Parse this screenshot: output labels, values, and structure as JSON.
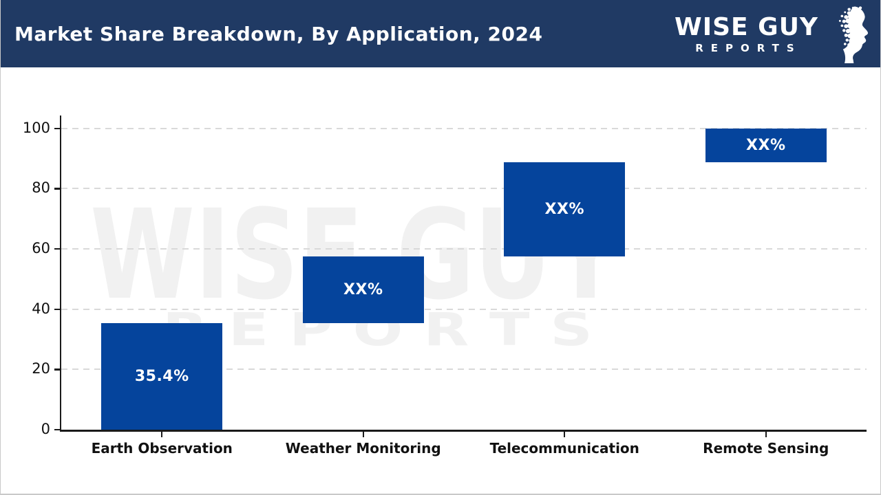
{
  "header": {
    "title": "Market Share Breakdown, By Application, 2024",
    "logo": {
      "line1": "WISE GUY",
      "line2": "REPORTS"
    }
  },
  "watermark": {
    "line1": "WISE GUY",
    "line2": "R E P O R T S"
  },
  "colors": {
    "header_bg": "#203a64",
    "bar": "#05449c",
    "bar_label_text": "#ffffff",
    "axis": "#1a1a1a",
    "gridline": "#d9d9d9",
    "watermark": "#f1f1f1",
    "title_text": "#ffffff",
    "category_text": "#111111"
  },
  "chart_data": {
    "type": "bar",
    "subtype": "waterfall",
    "title": "Market Share Breakdown, By Application, 2024",
    "categories": [
      "Earth Observation",
      "Weather Monitoring",
      "Telecommunication",
      "Remote Sensing"
    ],
    "segments": [
      {
        "category": "Earth Observation",
        "start": 0,
        "end": 35.4,
        "label": "35.4%"
      },
      {
        "category": "Weather Monitoring",
        "start": 35.4,
        "end": 57.5,
        "label": "XX%"
      },
      {
        "category": "Telecommunication",
        "start": 57.5,
        "end": 88.6,
        "label": "XX%"
      },
      {
        "category": "Remote Sensing",
        "start": 88.6,
        "end": 100,
        "label": "XX%"
      }
    ],
    "xlabel": "",
    "ylabel": "",
    "yticks": [
      0,
      20,
      40,
      60,
      80,
      100
    ],
    "ylim": [
      0,
      104
    ],
    "grid": "horizontal-dashed",
    "legend": "none",
    "unit": "%"
  }
}
